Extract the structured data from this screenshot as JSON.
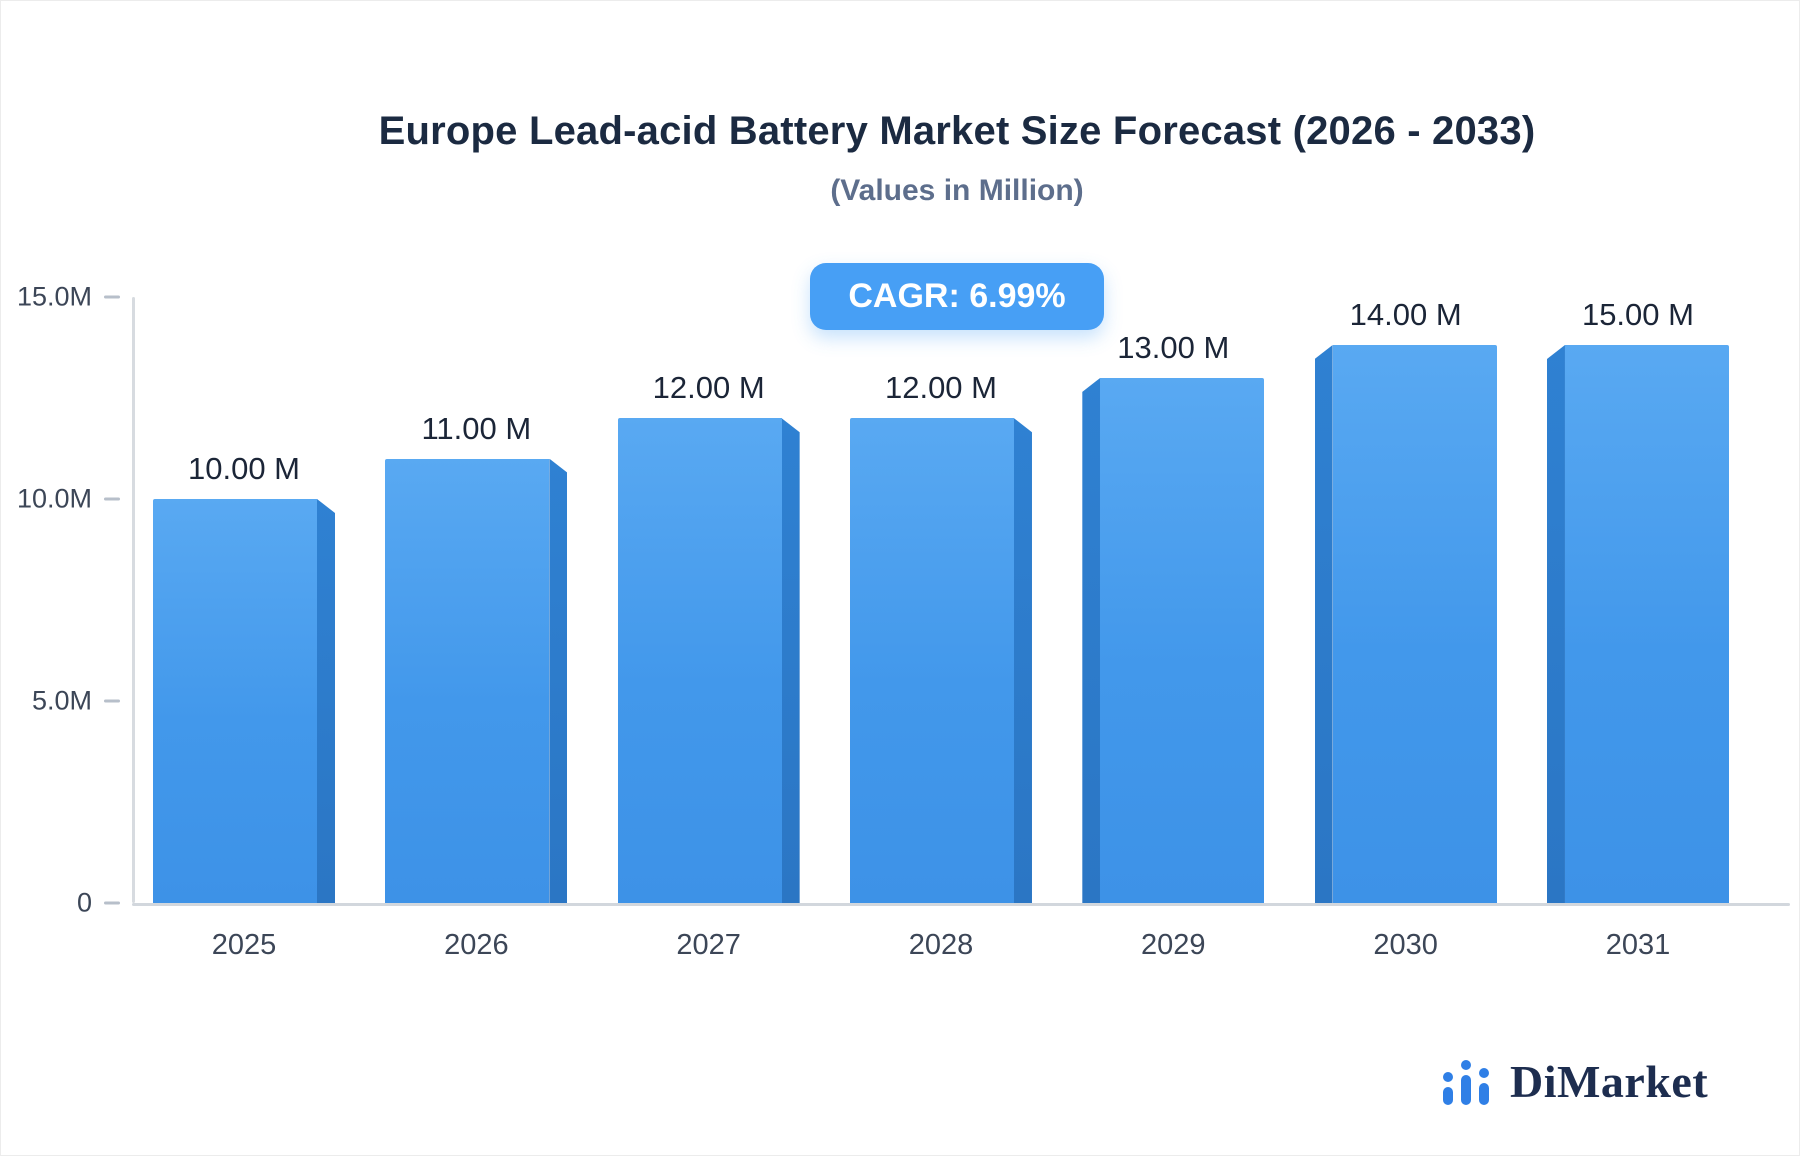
{
  "badge": {
    "label": "CAGR: 6.99%"
  },
  "brand": {
    "name": "DiMarket",
    "icon": "bar-chart-icon"
  },
  "colors": {
    "bar_face_top": "#59a9f2",
    "bar_face_bottom": "#3d92e7",
    "bar_side": "#2d7ccd",
    "badge_bg": "#479ff5",
    "title_text": "#1b2a41",
    "subtitle_text": "#5d6e8c",
    "axis_text": "#3c4657",
    "brand_text": "#1d2d4f",
    "brand_icon": "#2f7fe6"
  },
  "chart_data": {
    "type": "bar",
    "title": "Europe Lead-acid Battery Market Size Forecast (2026 - 2033)",
    "subtitle": "(Values in Million)",
    "categories": [
      "2025",
      "2026",
      "2027",
      "2028",
      "2029",
      "2030",
      "2031"
    ],
    "values": [
      10,
      11,
      12,
      12,
      13,
      14,
      15
    ],
    "value_labels": [
      "10.00 M",
      "11.00 M",
      "12.00 M",
      "12.00 M",
      "13.00 M",
      "14.00 M",
      "15.00 M"
    ],
    "unit": "Million",
    "xlabel": "",
    "ylabel": "",
    "ylim": [
      0,
      15
    ],
    "yticks": [
      {
        "value": 0,
        "label": "0"
      },
      {
        "value": 5,
        "label": "5.0M"
      },
      {
        "value": 10,
        "label": "10.0M"
      },
      {
        "value": 15,
        "label": "15.0M"
      }
    ],
    "annotation": "CAGR: 6.99%",
    "grid": false,
    "legend": false
  }
}
